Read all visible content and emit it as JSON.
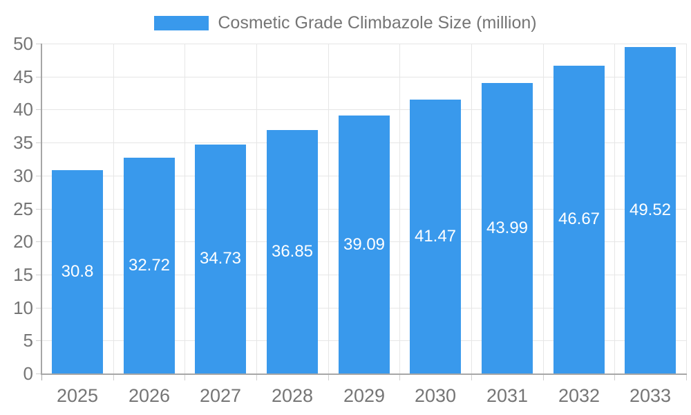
{
  "chart_data": {
    "type": "bar",
    "title": "Cosmetic Grade Climbazole Size (million)",
    "categories": [
      "2025",
      "2026",
      "2027",
      "2028",
      "2029",
      "2030",
      "2031",
      "2032",
      "2033"
    ],
    "values": [
      30.8,
      32.72,
      34.73,
      36.85,
      39.09,
      41.47,
      43.99,
      46.67,
      49.52
    ],
    "yticks": [
      0,
      5,
      10,
      15,
      20,
      25,
      30,
      35,
      40,
      45,
      50
    ],
    "ylim": [
      0,
      50
    ],
    "xlabel": "",
    "ylabel": "",
    "grid": "on",
    "legend_position": "top",
    "colors": {
      "bar": "#3999EC",
      "bar_label": "#FFFFFF",
      "grid_line": "#E6E6E6",
      "tick_line": "#CFCFCF",
      "axis_line": "#A6A6A6",
      "tick_text": "#757575",
      "background": "#FFFFFF"
    }
  }
}
